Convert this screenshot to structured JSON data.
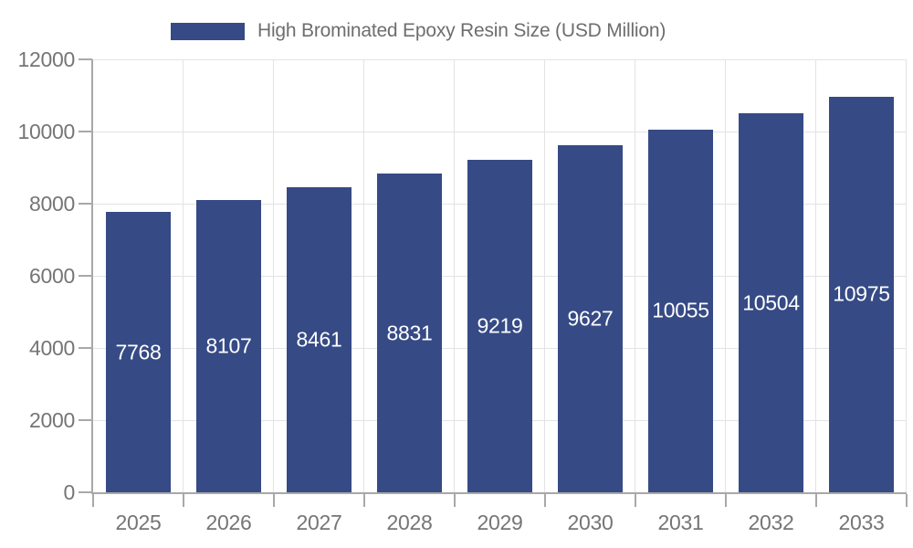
{
  "legend": {
    "label": "High Brominated Epoxy Resin Size (USD Million)"
  },
  "colors": {
    "bar": "#364a85",
    "bar_label": "#ffffff",
    "axis_text": "#757575",
    "legend_text": "#6e6e6e",
    "axis_line": "#a8a8a8",
    "gridline": "#e3e3e6"
  },
  "chart_data": {
    "type": "bar",
    "title": "High Brominated Epoxy Resin Size (USD Million)",
    "categories": [
      "2025",
      "2026",
      "2027",
      "2028",
      "2029",
      "2030",
      "2031",
      "2032",
      "2033"
    ],
    "series": [
      {
        "name": "High Brominated Epoxy Resin Size (USD Million)",
        "values": [
          7768,
          8107,
          8461,
          8831,
          9219,
          9627,
          10055,
          10504,
          10975
        ]
      }
    ],
    "xlabel": "",
    "ylabel": "",
    "ylim": [
      0,
      12000
    ],
    "yticks": [
      0,
      2000,
      4000,
      6000,
      8000,
      10000,
      12000
    ],
    "grid": true,
    "legend_position": "top",
    "value_label_position": "inside-center"
  }
}
